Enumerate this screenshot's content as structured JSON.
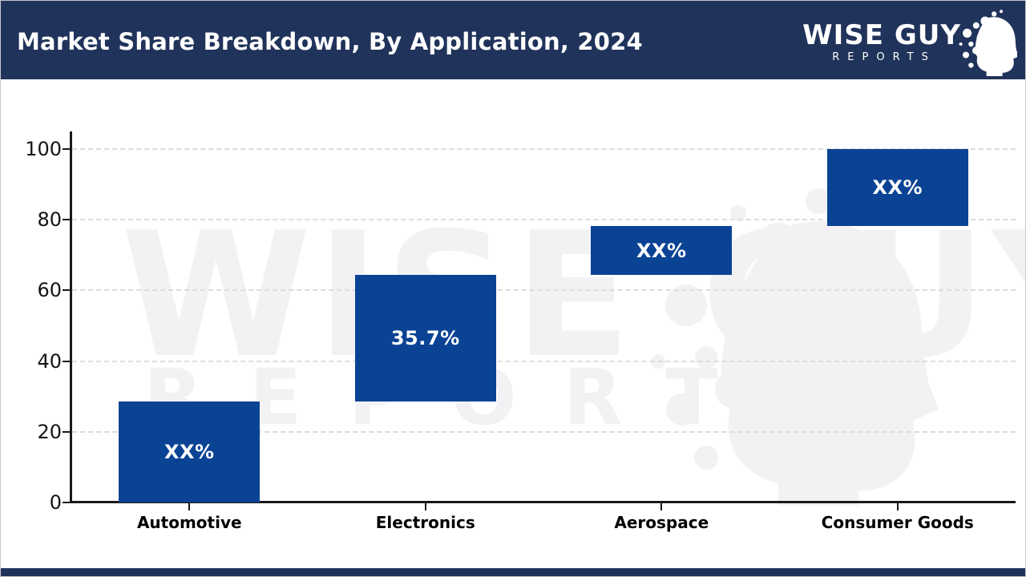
{
  "header": {
    "title": "Market Share Breakdown, By Application, 2024",
    "logo": {
      "line1": "WISE GUY",
      "line2": "REPORTS"
    }
  },
  "watermark": {
    "line1": "WISE GUY",
    "line2": "REPORTS"
  },
  "footer": {},
  "colors": {
    "header_bg": "#20335a",
    "bar_blue": "#0b4394",
    "grid_gray": "#dcdcdc",
    "axis_black": "#1a1a1a",
    "watermark_gray": "#f2f2f5"
  },
  "chart_data": {
    "type": "bar",
    "subtype": "floating-waterfall",
    "title": "Market Share Breakdown, By Application, 2024",
    "categories": [
      "Automotive",
      "Electronics",
      "Aerospace",
      "Consumer Goods"
    ],
    "segments": [
      {
        "category": "Automotive",
        "start": 0,
        "end": 28.6,
        "label": "XX%"
      },
      {
        "category": "Electronics",
        "start": 28.6,
        "end": 64.3,
        "label": "35.7%"
      },
      {
        "category": "Aerospace",
        "start": 64.3,
        "end": 78.2,
        "label": "XX%"
      },
      {
        "category": "Consumer Goods",
        "start": 78.2,
        "end": 100,
        "label": "XX%"
      }
    ],
    "y_ticks": [
      0,
      20,
      40,
      60,
      80,
      100
    ],
    "ylim": [
      0,
      105
    ],
    "xlabel": "",
    "ylabel": "",
    "grid": "horizontal-dashed",
    "legend": "none",
    "bar_color": "#0b4394"
  }
}
